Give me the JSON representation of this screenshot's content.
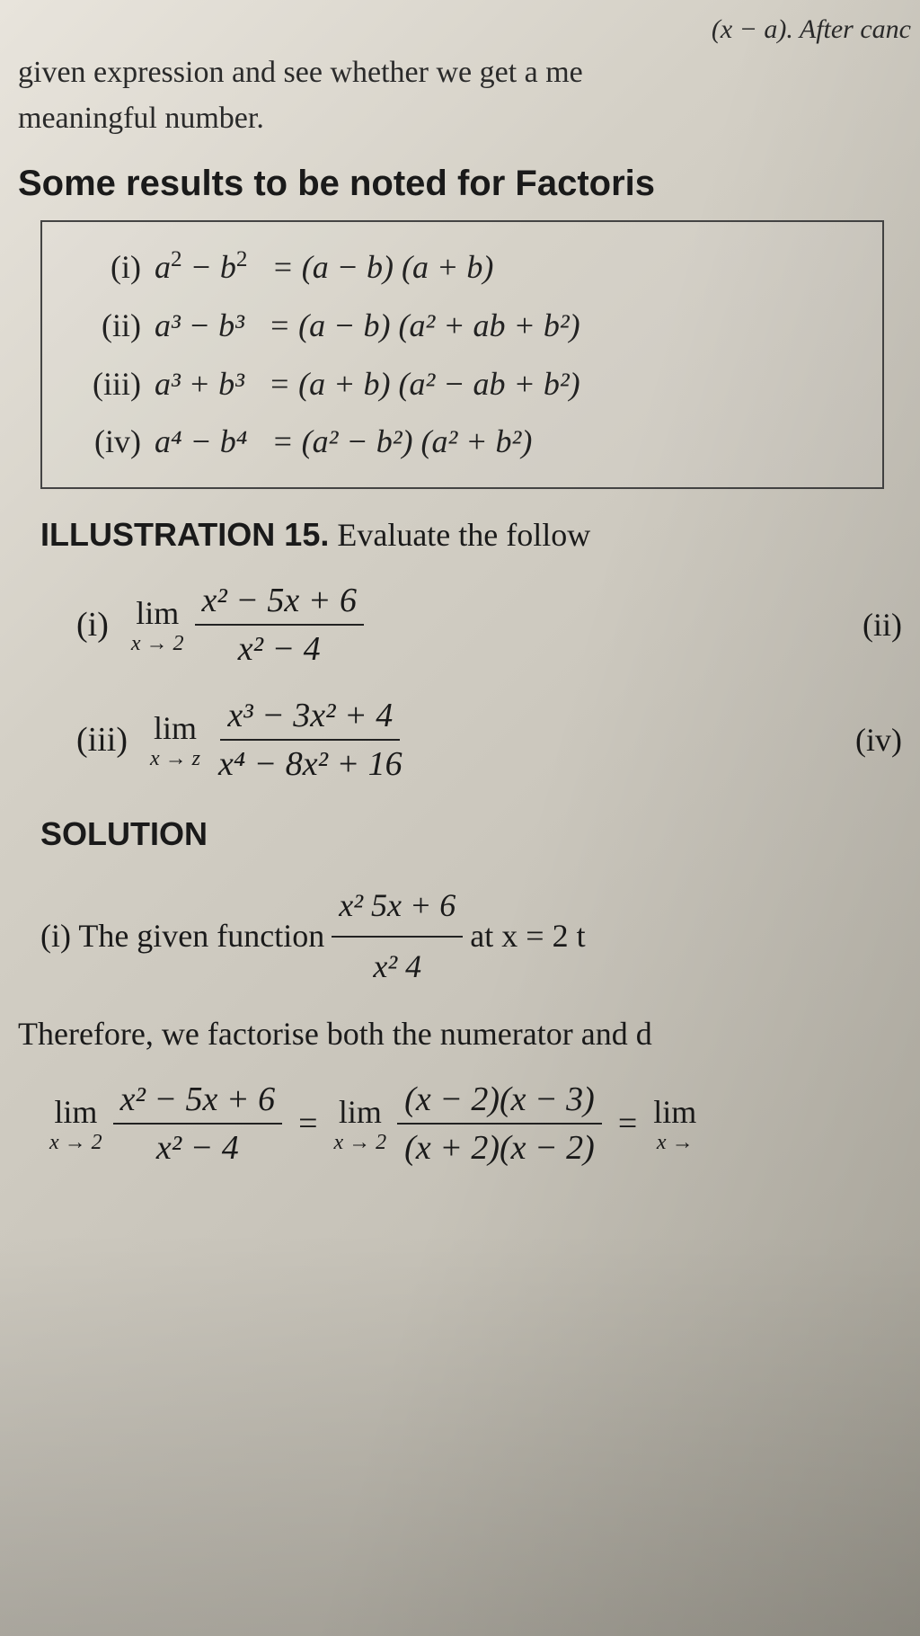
{
  "intro": {
    "frag_top_right": "(x − a). After canc",
    "line1": "given expression and see whether we get a me",
    "line2": "meaningful number."
  },
  "section_heading": "Some results to be noted for Factoris",
  "formulas": {
    "i_label": "(i)",
    "i_lhs_a": "a",
    "i_lhs_exp1": "2",
    "i_lhs_op": " − ",
    "i_lhs_b": "b",
    "i_lhs_exp2": "2",
    "i_rhs": "= (a − b) (a + b)",
    "ii_label": "(ii)",
    "ii_lhs": "a³ − b³",
    "ii_rhs": "= (a − b) (a² + ab + b²)",
    "iii_label": "(iii)",
    "iii_lhs": "a³ + b³",
    "iii_rhs": "= (a + b) (a² − ab + b²)",
    "iv_label": "(iv)",
    "iv_lhs": "a⁴ − b⁴",
    "iv_rhs": "= (a² − b²) (a² + b²)"
  },
  "illustration": {
    "bold": "ILLUSTRATION 15.",
    "rest": " Evaluate the follow"
  },
  "problems": {
    "i_label": "(i)",
    "i_lim": "lim",
    "i_lim_sub": "x → 2",
    "i_num": "x² − 5x + 6",
    "i_den": "x² − 4",
    "ii_label": "(ii)",
    "iii_label": "(iii)",
    "iii_lim": "lim",
    "iii_lim_sub": "x → z",
    "iii_num": "x³ − 3x² + 4",
    "iii_den": "x⁴ − 8x² + 16",
    "iv_label": "(iv)"
  },
  "solution_heading": "SOLUTION",
  "solution_line": {
    "pre": "(i) The given function ",
    "frac_num": "x² 5x + 6",
    "frac_den": "x² 4",
    "post": " at x = 2 t"
  },
  "therefore": "Therefore, we factorise both the numerator and d",
  "equation": {
    "lim1": "lim",
    "lim1_sub": "x → 2",
    "frac1_num": "x² − 5x + 6",
    "frac1_den": "x² − 4",
    "eq1": "=",
    "lim2": "lim",
    "lim2_sub": "x → 2",
    "frac2_num": "(x − 2)(x − 3)",
    "frac2_den": "(x + 2)(x − 2)",
    "eq2": "=",
    "lim3": "lim",
    "lim3_sub": "x →"
  },
  "colors": {
    "text": "#1a1a1a",
    "border": "#444444",
    "bg_light": "#e8e4dc",
    "bg_dark": "#b8b4a8"
  }
}
